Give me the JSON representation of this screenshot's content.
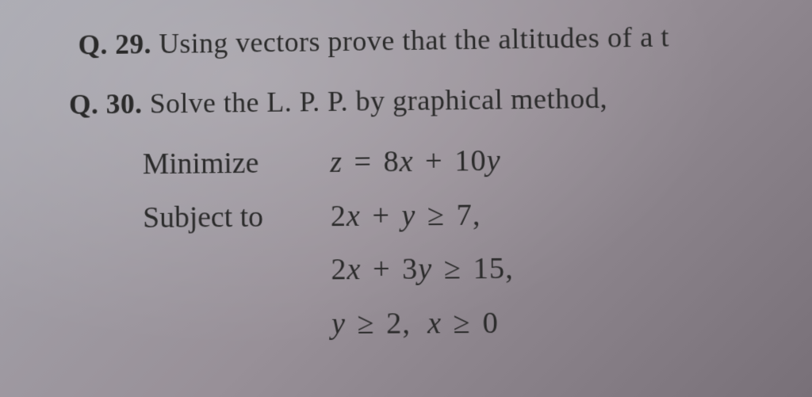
{
  "document": {
    "background_gradient_start": "#a8a8b0",
    "background_gradient_end": "#787078",
    "text_color": "#2a2a2a",
    "font_family": "Times New Roman",
    "base_fontsize": 36
  },
  "q29": {
    "number": "Q. 29.",
    "text": "Using vectors prove that the altitudes of a t"
  },
  "q30": {
    "number": "Q. 30.",
    "text": "Solve the L. P. P. by graphical method,",
    "objective_label": "Minimize",
    "objective_expr": "z = 8x + 10y",
    "constraint_label": "Subject to",
    "constraints": [
      "2x + y ≥ 7,",
      "2x + 3y ≥ 15,",
      "y ≥ 2,  x ≥ 0"
    ]
  }
}
